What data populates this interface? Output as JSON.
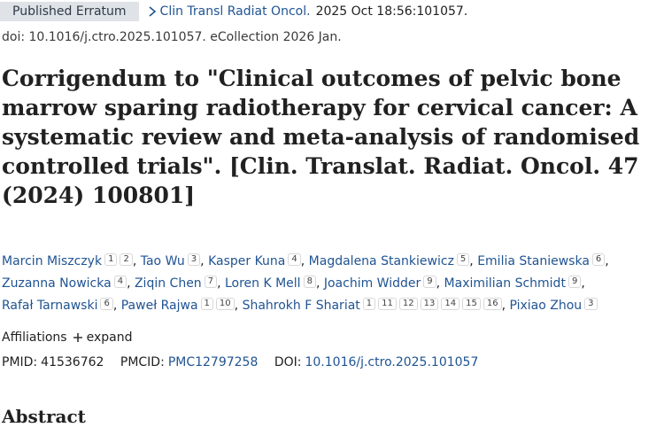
{
  "header": {
    "badge": "Published Erratum",
    "journal": "Clin Transl Radiat Oncol.",
    "citation": "2025 Oct 18:56:101057.",
    "doi_line": "doi: 10.1016/j.ctro.2025.101057. eCollection 2026 Jan."
  },
  "title": "Corrigendum to \"Clinical outcomes of pelvic bone marrow sparing radiotherapy for cervical cancer: A systematic review and meta-analysis of randomised controlled trials\". [Clin. Translat. Radiat. Oncol. 47 (2024) 100801]",
  "authors": {
    "separator": ",",
    "list": [
      {
        "name": "Marcin Miszczyk",
        "affiliations": [
          "1",
          "2"
        ]
      },
      {
        "name": "Tao Wu",
        "affiliations": [
          "3"
        ]
      },
      {
        "name": "Kasper Kuna",
        "affiliations": [
          "4"
        ]
      },
      {
        "name": "Magdalena Stankiewicz",
        "affiliations": [
          "5"
        ]
      },
      {
        "name": "Emilia Staniewska",
        "affiliations": [
          "6"
        ]
      },
      {
        "name": "Zuzanna Nowicka",
        "affiliations": [
          "4"
        ]
      },
      {
        "name": "Ziqin Chen",
        "affiliations": [
          "7"
        ]
      },
      {
        "name": "Loren K Mell",
        "affiliations": [
          "8"
        ]
      },
      {
        "name": "Joachim Widder",
        "affiliations": [
          "9"
        ]
      },
      {
        "name": "Maximilian Schmidt",
        "affiliations": [
          "9"
        ]
      },
      {
        "name": "Rafał Tarnawski",
        "affiliations": [
          "6"
        ]
      },
      {
        "name": "Paweł Rajwa",
        "affiliations": [
          "1",
          "10"
        ]
      },
      {
        "name": "Shahrokh F Shariat",
        "affiliations": [
          "1",
          "11",
          "12",
          "13",
          "14",
          "15",
          "16"
        ]
      },
      {
        "name": "Pixiao Zhou",
        "affiliations": [
          "3"
        ]
      }
    ]
  },
  "affiliations": {
    "label": "Affiliations",
    "action": "expand"
  },
  "identifiers": {
    "pmid_label": "PMID:",
    "pmid": "41536762",
    "pmcid_label": "PMCID:",
    "pmcid": "PMC12797258",
    "doi_label": "DOI:",
    "doi": "10.1016/j.ctro.2025.101057"
  },
  "abstract_heading": "Abstract"
}
